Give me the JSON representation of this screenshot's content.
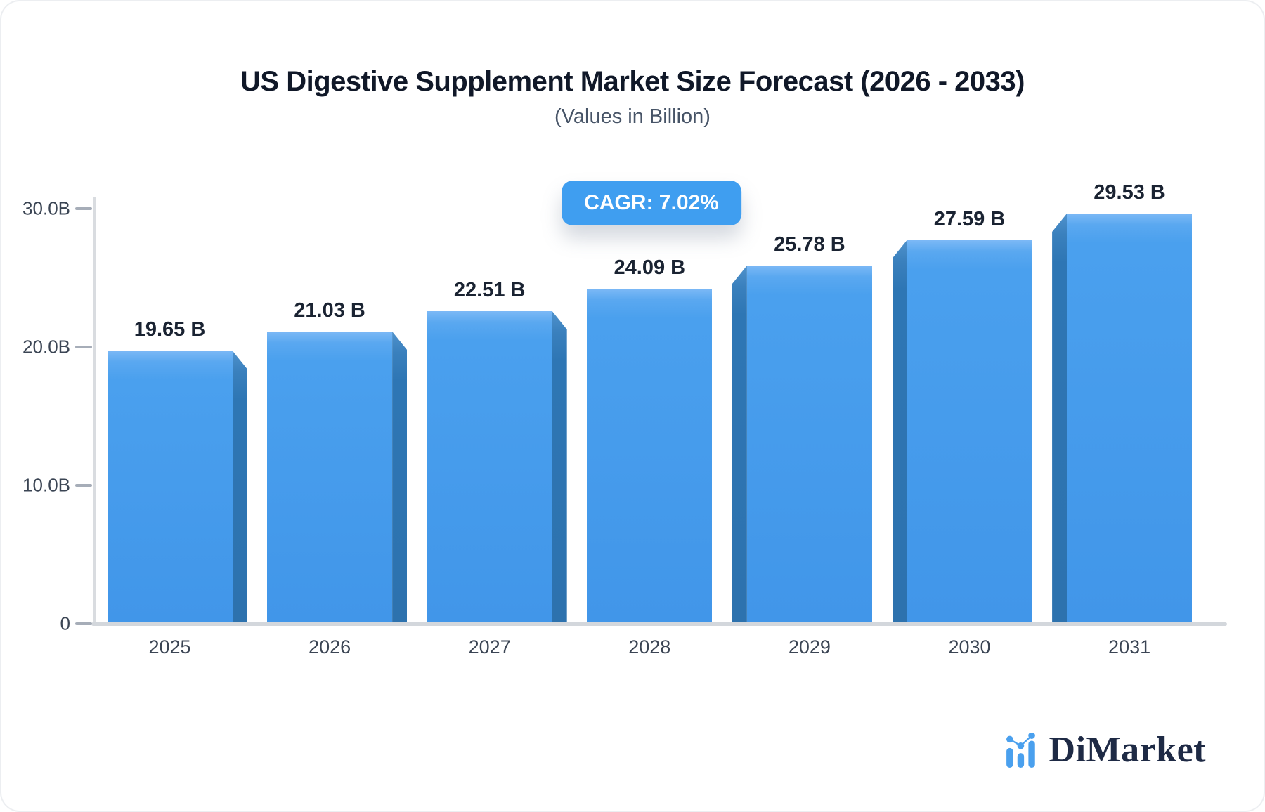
{
  "title": "US Digestive Supplement Market Size Forecast (2026 - 2033)",
  "subtitle": "(Values in Billion)",
  "badge": {
    "label": "CAGR: 7.02%",
    "bg_color": "#3f9ef0",
    "text_color": "#ffffff"
  },
  "chart_data": {
    "type": "bar",
    "categories": [
      "2025",
      "2026",
      "2027",
      "2028",
      "2029",
      "2030",
      "2031"
    ],
    "values": [
      19.65,
      21.03,
      22.51,
      24.09,
      25.78,
      27.59,
      29.53
    ],
    "value_labels": [
      "19.65 B",
      "21.03 B",
      "22.51 B",
      "24.09 B",
      "25.78 B",
      "27.59 B",
      "29.53 B"
    ],
    "title": "US Digestive Supplement Market Size Forecast (2026 - 2033)",
    "xlabel": "",
    "ylabel": "",
    "y_ticks": [
      {
        "label": "30.0B",
        "value": 30
      },
      {
        "label": "20.0B",
        "value": 20
      },
      {
        "label": "10.0B",
        "value": 10
      },
      {
        "label": "0",
        "value": 0
      }
    ],
    "ylim": [
      0,
      30
    ],
    "grid": false,
    "legend": null,
    "bar_face_color": "#4aa0ee",
    "bar_side_color": "#2e76b4",
    "axis_line_color": "#d6d9dd",
    "effect": "3d-perspective-center"
  },
  "logo": {
    "text": "DiMarket",
    "icon": "bar-line-chart-logo-icon",
    "text_color": "#1e2a45",
    "icon_color": "#4aa0ee"
  }
}
